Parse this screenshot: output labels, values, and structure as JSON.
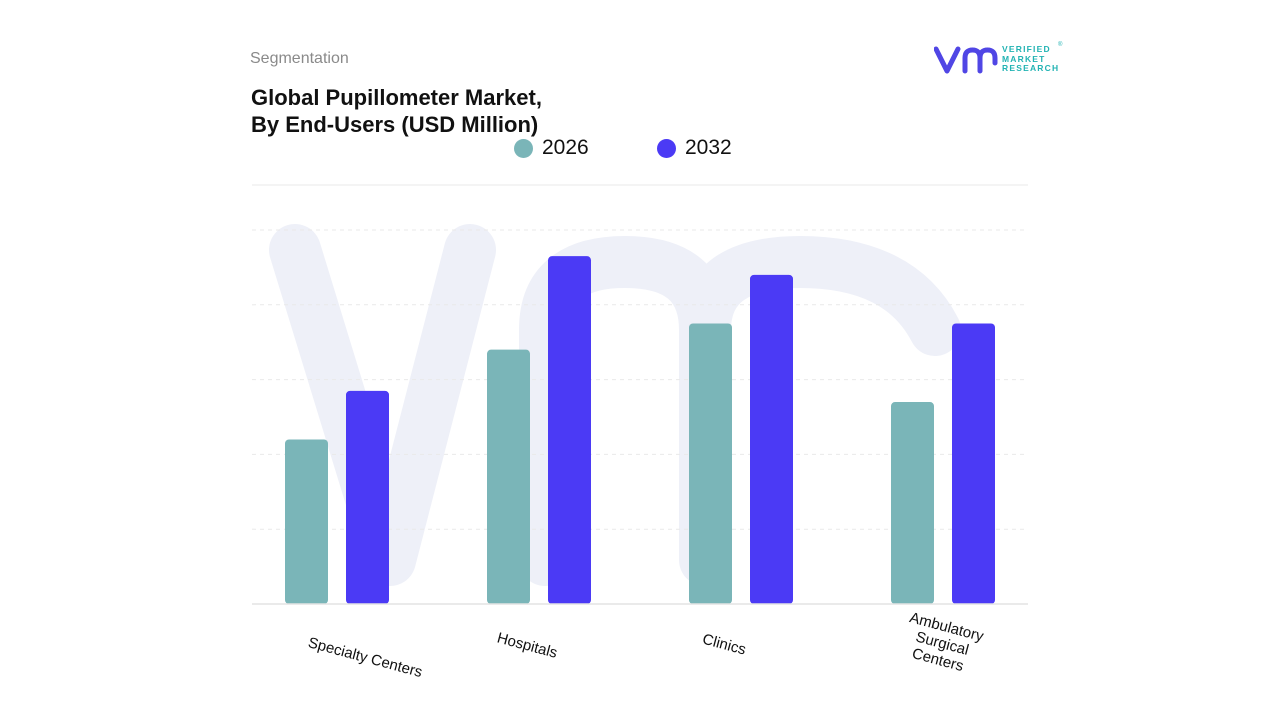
{
  "header": {
    "segmentation": "Segmentation",
    "title_line1": "Global Pupillometer Market,",
    "title_line2": "By End-Users (USD Million)"
  },
  "logo": {
    "line1": "VERIFIED",
    "line2": "MARKET",
    "line3": "RESEARCH",
    "registered": "®"
  },
  "colors": {
    "series_2026": "#7ab5b8",
    "series_2032": "#4b3af5",
    "logo_mark": "#5046e5",
    "logo_text": "#22b3b3",
    "watermark": "#eef0f8"
  },
  "chart_data": {
    "type": "bar",
    "categories": [
      "Specialty Centers",
      "Hospitals",
      "Clinics",
      "Ambulatory Surgical Centers"
    ],
    "series": [
      {
        "name": "2026",
        "values": [
          44,
          68,
          75,
          54
        ]
      },
      {
        "name": "2032",
        "values": [
          57,
          93,
          88,
          75
        ]
      }
    ],
    "ylim": [
      0,
      100
    ],
    "grid": true,
    "legend": "top-center",
    "xlabel": "",
    "ylabel": ""
  }
}
